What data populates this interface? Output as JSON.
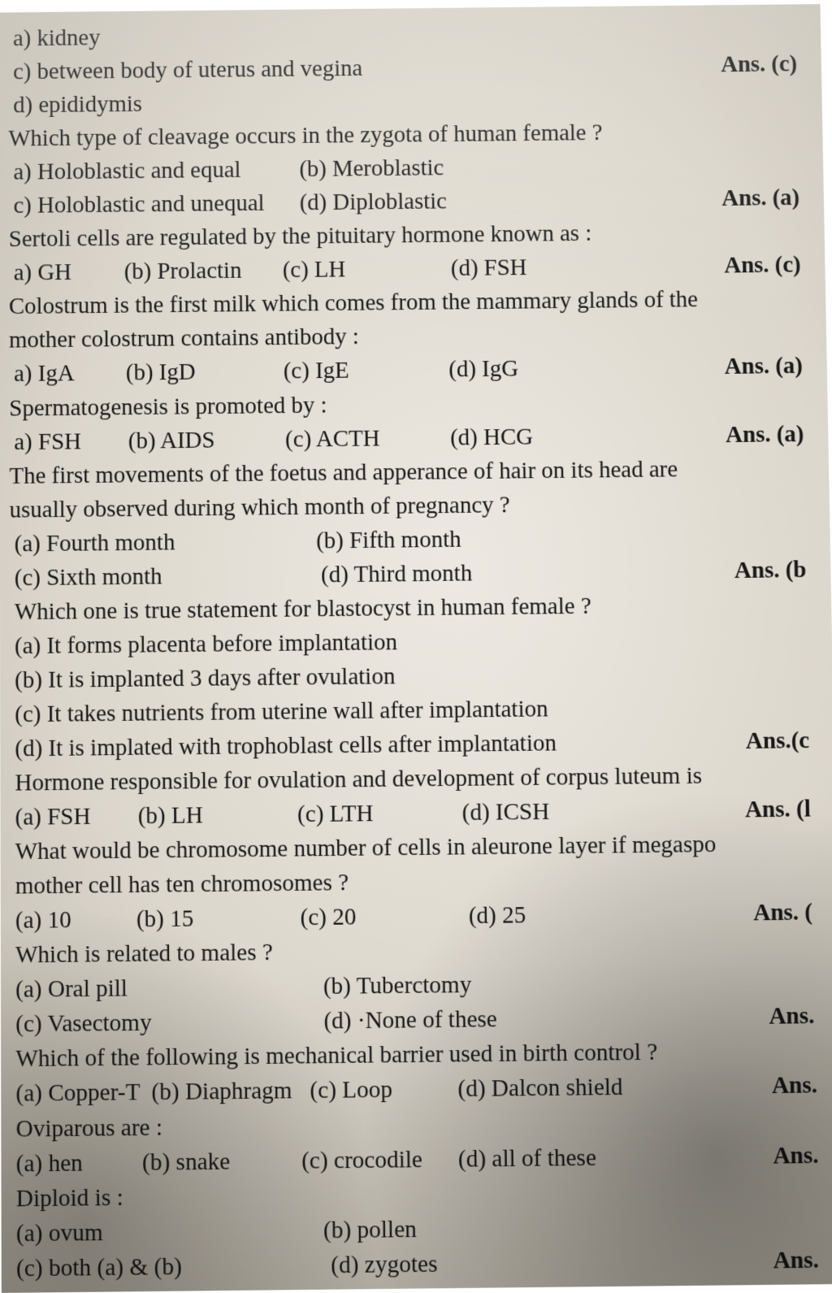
{
  "lines": [
    {
      "left": "a) kidney",
      "ans": ""
    },
    {
      "left": "c) between body of uterus and vegina",
      "ans": "Ans. (c)",
      "ansBold": true
    },
    {
      "left": "d) epididymis",
      "ans": ""
    },
    {
      "left": "Which type of cleavage occurs in the zygota of human female ?",
      "ans": "",
      "slight": true
    },
    {
      "left": "a) Holoblastic and equal          (b) Meroblastic",
      "ans": ""
    },
    {
      "left": "c) Holoblastic and unequal      (d) Diploblastic",
      "ans": "Ans. (a)",
      "ansBold": true
    },
    {
      "left": "Sertoli cells are regulated by the pituitary hormone known as :",
      "ans": "",
      "slight": true
    },
    {
      "left": "a) GH         (b) Prolactin       (c) LH                  (d) FSH",
      "ans": "Ans. (c)",
      "ansBold": true
    },
    {
      "left": "Colostrum is the first milk which comes from the mammary glands of the",
      "ans": "",
      "slight": true
    },
    {
      "left": "mother colostrum contains antibody :",
      "ans": "",
      "slight": true
    },
    {
      "left": "a) IgA         (b) IgD               (c) IgE                 (d) IgG",
      "ans": "Ans. (a)",
      "ansBold": true
    },
    {
      "left": "Spermatogenesis is promoted by :",
      "ans": "",
      "slight": true
    },
    {
      "left": "a) FSH        (b) AIDS            (c) ACTH            (d) HCG",
      "ans": "Ans. (a)",
      "ansBold": true
    },
    {
      "left": "The first movements of the foetus and apperance of hair on its head are",
      "ans": "",
      "slight": true
    },
    {
      "left": "usually observed during which month of pregnancy ?",
      "ans": "",
      "slight": true
    },
    {
      "left": "(a) Fourth month                        (b) Fifth month",
      "ans": ""
    },
    {
      "left": "(c) Sixth month                           (d) Third month",
      "ans": "Ans. (b",
      "ansBold": true
    },
    {
      "left": "Which one is true statement for blastocyst in human female ?",
      "ans": ""
    },
    {
      "left": "(a) It forms placenta before implantation",
      "ans": ""
    },
    {
      "left": "(b) It is implanted 3 days after ovulation",
      "ans": ""
    },
    {
      "left": "(c) It takes nutrients from uterine wall after implantation",
      "ans": ""
    },
    {
      "left": "(d) It is implated with trophoblast cells after implantation",
      "ans": "Ans.(c",
      "ansBold": true
    },
    {
      "left": "Hormone responsible for ovulation and development of corpus luteum is",
      "ans": ""
    },
    {
      "left": "(a) FSH        (b) LH                (c) LTH               (d) ICSH",
      "ans": "Ans. (l",
      "ansBold": true
    },
    {
      "left": "What would be chromosome number of cells in aleurone layer if megaspo",
      "ans": ""
    },
    {
      "left": "mother cell has ten chromosomes ?",
      "ans": ""
    },
    {
      "left": "(a) 10           (b) 15                  (c) 20                   (d) 25",
      "ans": "Ans. (",
      "ansBold": true
    },
    {
      "left": "Which is related to males ?",
      "ans": ""
    },
    {
      "left": "(a) Oral pill                                 (b) Tuberctomy",
      "ans": ""
    },
    {
      "left": "(c) Vasectomy                             (d) ·None of these",
      "ans": "Ans.",
      "ansBold": true
    },
    {
      "left": "Which of the following is mechanical barrier used in birth control ?",
      "ans": ""
    },
    {
      "left": "(a) Copper-T  (b) Diaphragm   (c) Loop           (d) Dalcon shield",
      "ans": "Ans.",
      "ansBold": true,
      "tight": true
    },
    {
      "left": "Oviparous are :",
      "ans": ""
    },
    {
      "left": "(a) hen          (b) snake            (c) crocodile      (d) all of these",
      "ans": "Ans.",
      "ansBold": true,
      "tight": true
    },
    {
      "left": "Diploid is :",
      "ans": ""
    },
    {
      "left": "(a) ovum                                     (b) pollen",
      "ans": ""
    },
    {
      "left": "(c) both (a) & (b)                         (d) zygotes",
      "ans": "Ans.",
      "ansBold": true
    }
  ]
}
